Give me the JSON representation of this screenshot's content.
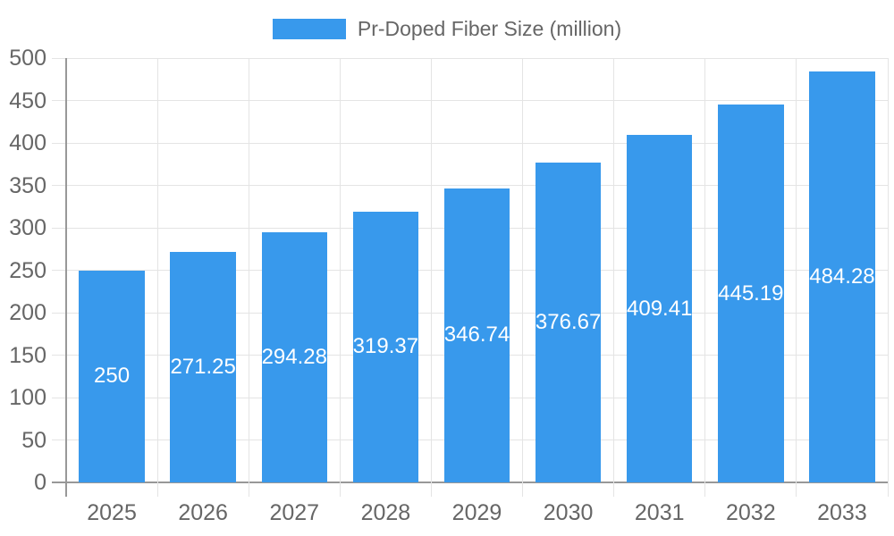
{
  "legend": {
    "label": "Pr-Doped Fiber Size (million)"
  },
  "colors": {
    "bar": "#3899EC",
    "grid": "#E4E4E4",
    "axis": "#989898",
    "text": "#666666",
    "value_label": "#FFFFFF",
    "background": "#FFFFFF"
  },
  "chart_data": {
    "type": "bar",
    "title": "",
    "xlabel": "",
    "ylabel": "",
    "categories": [
      "2025",
      "2026",
      "2027",
      "2028",
      "2029",
      "2030",
      "2031",
      "2032",
      "2033"
    ],
    "series": [
      {
        "name": "Pr-Doped Fiber Size (million)",
        "values": [
          250,
          271.25,
          294.28,
          319.37,
          346.74,
          376.67,
          409.41,
          445.19,
          484.28
        ]
      }
    ],
    "value_labels": [
      "250",
      "271.25",
      "294.28",
      "319.37",
      "346.74",
      "376.67",
      "409.41",
      "445.19",
      "484.28"
    ],
    "ylim": [
      0,
      500
    ],
    "ytick_step": 50,
    "yticks": [
      "0",
      "50",
      "100",
      "150",
      "200",
      "250",
      "300",
      "350",
      "400",
      "450",
      "500"
    ],
    "grid": true,
    "legend_position": "top-center",
    "value_label_position": "inside-center"
  }
}
